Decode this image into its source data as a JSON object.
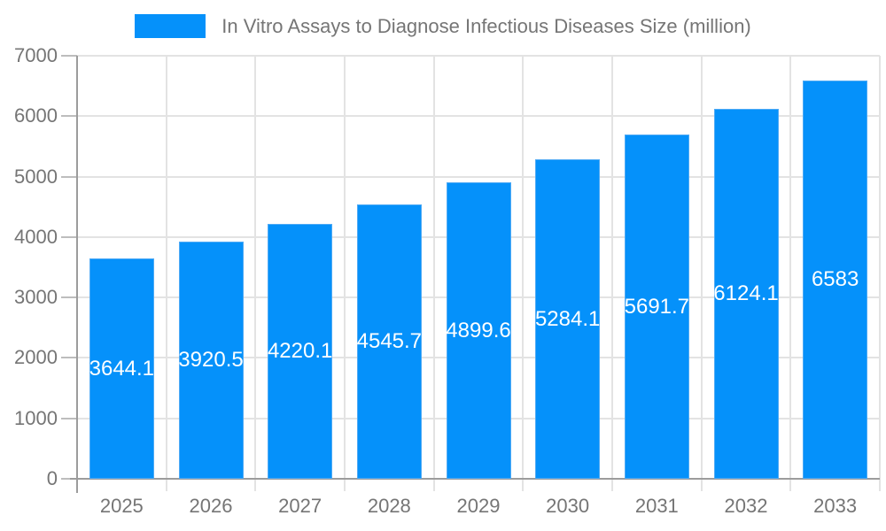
{
  "legend": {
    "label": "In Vitro Assays to Diagnose Infectious Diseases Size (million)"
  },
  "chart_data": {
    "type": "bar",
    "title": "In Vitro Assays to Diagnose Infectious Diseases Size (million)",
    "categories": [
      "2025",
      "2026",
      "2027",
      "2028",
      "2029",
      "2030",
      "2031",
      "2032",
      "2033"
    ],
    "values": [
      3644.1,
      3920.5,
      4220.1,
      4545.7,
      4899.6,
      5284.1,
      5691.7,
      6124.1,
      6583
    ],
    "value_labels": [
      "3644.1",
      "3920.5",
      "4220.1",
      "4545.7",
      "4899.6",
      "5284.1",
      "5691.7",
      "6124.1",
      "6583"
    ],
    "xlabel": "",
    "ylabel": "",
    "ylim": [
      0,
      7000
    ],
    "ytick_step": 1000,
    "ytick_labels": [
      "0",
      "1000",
      "2000",
      "3000",
      "4000",
      "5000",
      "6000",
      "7000"
    ],
    "grid": true,
    "legend_position": "top-center",
    "colors": {
      "bar_fill": "#0591fa",
      "bar_border": "#4faaf5",
      "value_label_text": "#ffffff",
      "axis_text": "#757575",
      "grid_line": "#e3e3e3",
      "axis_line": "#9c9c9c",
      "minor_tick": "#cfcfcf",
      "y_tick": "#bdbdbd"
    }
  }
}
